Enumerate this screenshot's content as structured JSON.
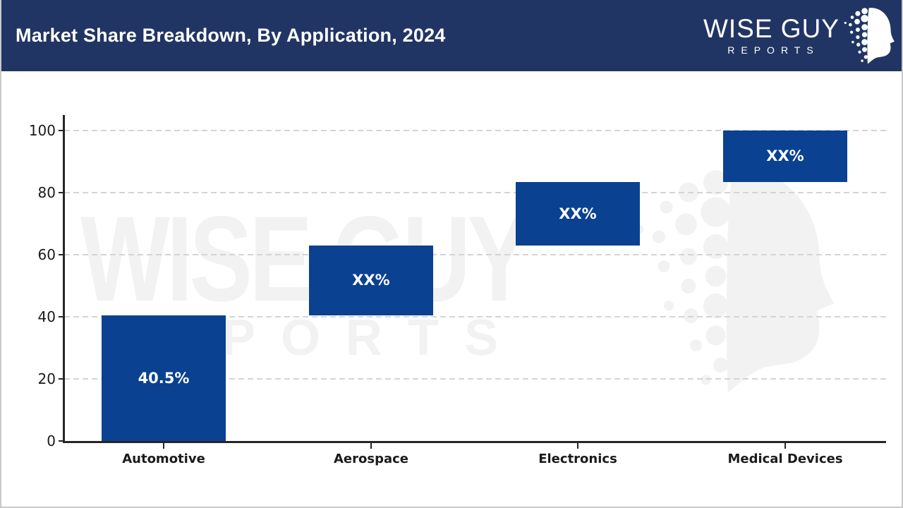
{
  "header": {
    "title": "Market Share Breakdown, By Application, 2024",
    "bg_color": "#213564",
    "logo": {
      "line1": "WISE GUY",
      "line2": "REPORTS"
    }
  },
  "watermark": {
    "line1": "WISE GUY",
    "line2": "REPORTS",
    "color": "#f2f2f2"
  },
  "chart_data": {
    "type": "bar",
    "subtype": "waterfall",
    "title": "Market Share Breakdown, By Application, 2024",
    "categories": [
      "Automotive",
      "Aerospace",
      "Electronics",
      "Medical Devices"
    ],
    "series": [
      {
        "name": "Market Share (%)",
        "segments": [
          {
            "category": "Automotive",
            "start": 0,
            "end": 40.5,
            "label": "40.5%"
          },
          {
            "category": "Aerospace",
            "start": 40.5,
            "end": 63,
            "label": "XX%"
          },
          {
            "category": "Electronics",
            "start": 63,
            "end": 83.5,
            "label": "XX%"
          },
          {
            "category": "Medical Devices",
            "start": 83.5,
            "end": 100,
            "label": "XX%"
          }
        ]
      }
    ],
    "xlabel": "",
    "ylabel": "",
    "ylim": [
      0,
      100
    ],
    "yticks": [
      0,
      20,
      40,
      60,
      80,
      100
    ],
    "grid": "horizontal-dashed",
    "legend_position": "none",
    "bar_color": "#0a4191",
    "bar_label_color": "#ffffff",
    "axis_color": "#262626",
    "grid_color": "#d4d4d4"
  }
}
